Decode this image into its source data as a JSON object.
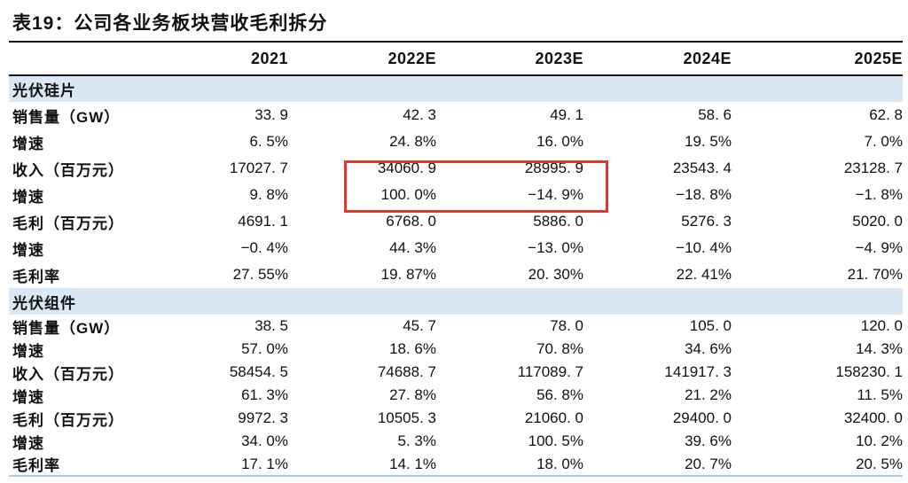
{
  "title": "表19：公司各业务板块营收毛利拆分",
  "colors": {
    "band_bg": "#dbe8f4",
    "border_dark": "#14141e",
    "border_bottom_light": "#aecbe4",
    "highlight": "#e0392b",
    "text": "#111111"
  },
  "highlight_note": "红色方框标出光伏硅片2022E与2023E的收入及增速",
  "table": {
    "year_headers": [
      "2021",
      "2022E",
      "2023E",
      "2024E",
      "2025E"
    ],
    "sections": [
      {
        "name": "光伏硅片",
        "rows": [
          {
            "label": "销售量（GW）",
            "values": [
              "33. 9",
              "42. 3",
              "49. 1",
              "58. 6",
              "62. 8"
            ]
          },
          {
            "label": "增速",
            "values": [
              "6. 5%",
              "24. 8%",
              "16. 0%",
              "19. 5%",
              "7. 0%"
            ]
          },
          {
            "label": "收入（百万元）",
            "values": [
              "17027. 7",
              "34060. 9",
              "28995. 9",
              "23543. 4",
              "23128. 7"
            ]
          },
          {
            "label": "增速",
            "values": [
              "9. 8%",
              "100. 0%",
              "−14. 9%",
              "−18. 8%",
              "−1. 8%"
            ]
          },
          {
            "label": "毛利（百万元）",
            "values": [
              "4691. 1",
              "6768. 0",
              "5886. 0",
              "5276. 3",
              "5020. 0"
            ]
          },
          {
            "label": "增速",
            "values": [
              "−0. 4%",
              "44. 3%",
              "−13. 0%",
              "−10. 4%",
              "−4. 9%"
            ]
          },
          {
            "label": "毛利率",
            "values": [
              "27. 55%",
              "19. 87%",
              "20. 30%",
              "22. 41%",
              "21. 70%"
            ]
          }
        ]
      },
      {
        "name": "光伏组件",
        "rows": [
          {
            "label": "销售量（GW）",
            "values": [
              "38. 5",
              "45. 7",
              "78. 0",
              "105. 0",
              "120. 0"
            ]
          },
          {
            "label": "增速",
            "values": [
              "57. 0%",
              "18. 6%",
              "70. 8%",
              "34. 6%",
              "14. 3%"
            ]
          },
          {
            "label": "收入（百万元）",
            "values": [
              "58454. 5",
              "74688. 7",
              "117089. 7",
              "141917. 3",
              "158230. 1"
            ]
          },
          {
            "label": "增速",
            "values": [
              "61. 3%",
              "27. 8%",
              "56. 8%",
              "21. 2%",
              "11. 5%"
            ]
          },
          {
            "label": "毛利（百万元）",
            "values": [
              "9972. 3",
              "10505. 3",
              "21060. 0",
              "29400. 0",
              "32400. 0"
            ]
          },
          {
            "label": "增速",
            "values": [
              "34. 0%",
              "5. 3%",
              "100. 5%",
              "39. 6%",
              "10. 2%"
            ]
          },
          {
            "label": "毛利率",
            "values": [
              "17. 1%",
              "14. 1%",
              "18. 0%",
              "20. 7%",
              "20. 5%"
            ]
          }
        ]
      }
    ]
  }
}
